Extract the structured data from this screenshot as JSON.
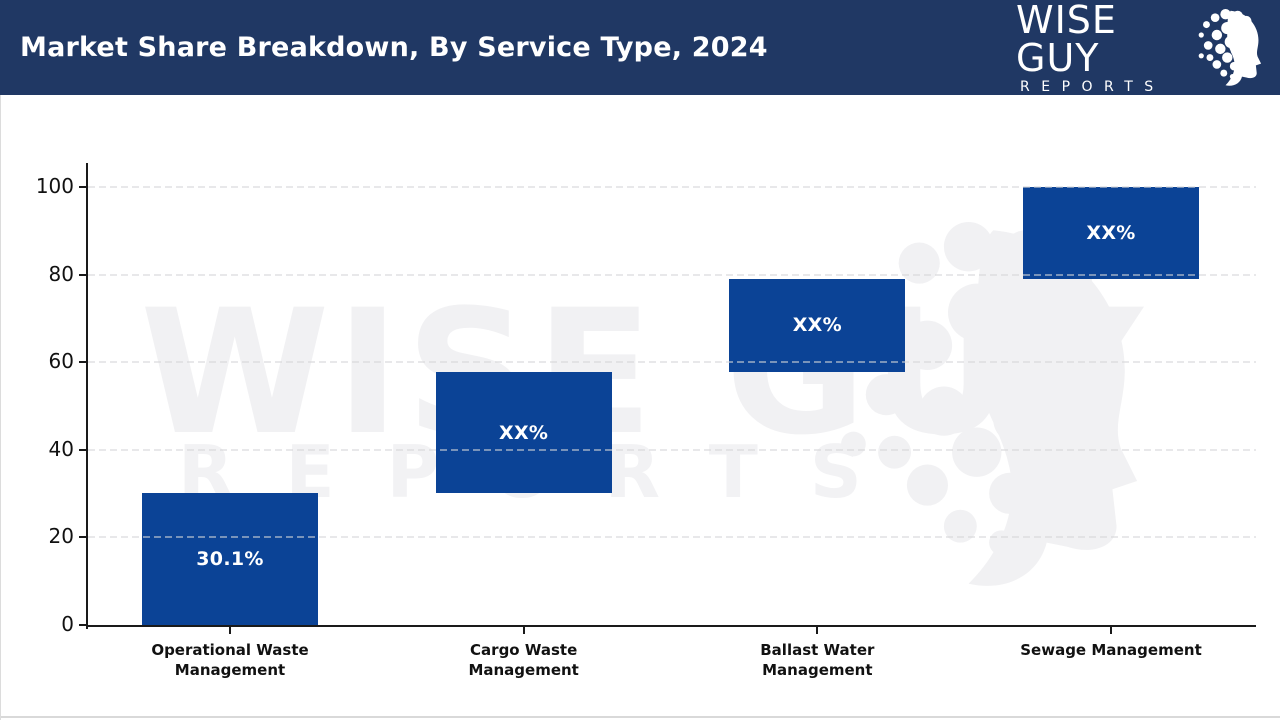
{
  "header": {
    "title": "Market Share Breakdown, By Service Type, 2024",
    "logo": {
      "line1": "WISE GUY",
      "line2": "REPORTS"
    }
  },
  "watermark": {
    "line1": "WISE GUY",
    "line2": "REPORTS"
  },
  "colors": {
    "header_bg": "#203864",
    "bar": "#0b4396",
    "bar_label": "#ffffff",
    "axis": "#1a1a1a",
    "gridline": "#e4e4e4",
    "watermark": "#f1f1f3"
  },
  "chart_data": {
    "type": "bar",
    "subtype": "waterfall",
    "title": "Market Share Breakdown, By Service Type, 2024",
    "categories": [
      "Operational Waste\nManagement",
      "Cargo Waste\nManagement",
      "Ballast Water\nManagement",
      "Sewage Management"
    ],
    "segments": [
      {
        "category": "Operational Waste Management",
        "start": 0,
        "end": 30.1,
        "label": "30.1%"
      },
      {
        "category": "Cargo Waste Management",
        "start": 30.1,
        "end": 57.7,
        "label": "XX%"
      },
      {
        "category": "Ballast Water Management",
        "start": 57.7,
        "end": 79.1,
        "label": "XX%"
      },
      {
        "category": "Sewage Management",
        "start": 79.1,
        "end": 100,
        "label": "XX%"
      }
    ],
    "xlabel": "",
    "ylabel": "",
    "yticks": [
      0,
      20,
      40,
      60,
      80,
      100
    ],
    "ylim": [
      0,
      105.5
    ],
    "grid": "horizontal-dashed",
    "legend": "none",
    "bar_color": "#0b4396",
    "value_label_color": "#ffffff"
  }
}
